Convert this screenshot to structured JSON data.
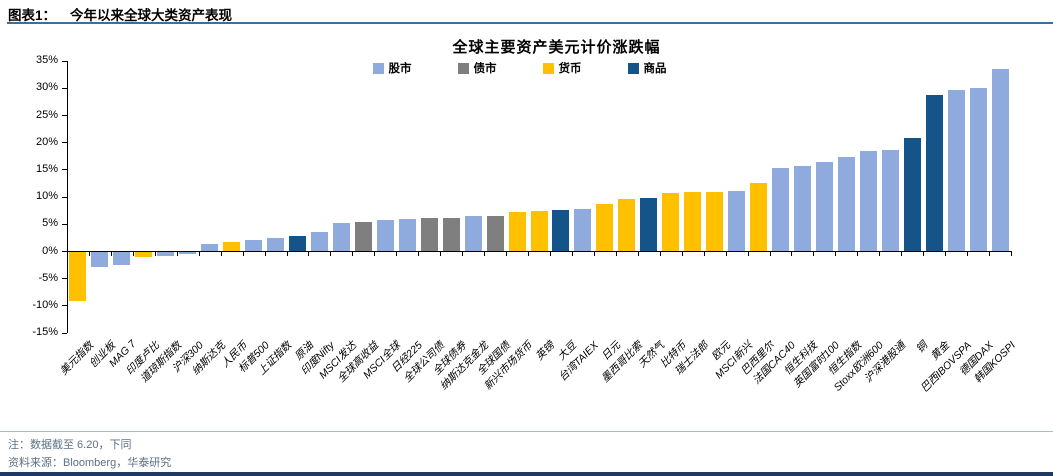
{
  "header": {
    "exhibit_label": "图表1：",
    "title": "今年以来全球大类资产表现"
  },
  "theme": {
    "rule_color": "#3E6E9E",
    "bottom_bar_color": "#1F3864",
    "note_color": "#5E7184",
    "footer_rule_color": "#A9BCCD"
  },
  "chart_data": {
    "type": "bar",
    "title": "全球主要资产美元计价涨跌幅",
    "ylabel": "",
    "xlabel": "",
    "ylim": [
      -15,
      35
    ],
    "yticks": [
      35,
      30,
      25,
      20,
      15,
      10,
      5,
      0,
      -5,
      -10,
      -15
    ],
    "ytick_format": "percent",
    "grid": false,
    "legend_position": "top",
    "legend": [
      {
        "label": "股市",
        "color": "#8FAADC"
      },
      {
        "label": "债市",
        "color": "#7F7F7F"
      },
      {
        "label": "货币",
        "color": "#FFC000"
      },
      {
        "label": "商品",
        "color": "#155489"
      }
    ],
    "bars": [
      {
        "label": "美元指数",
        "value": -9.0,
        "category": "货币"
      },
      {
        "label": "创业板",
        "value": -2.8,
        "category": "股市"
      },
      {
        "label": "MAG 7",
        "value": -2.3,
        "category": "股市"
      },
      {
        "label": "印度卢比",
        "value": -1.0,
        "category": "货币"
      },
      {
        "label": "道琼斯指数",
        "value": -0.8,
        "category": "股市"
      },
      {
        "label": "沪深300",
        "value": -0.3,
        "category": "股市"
      },
      {
        "label": "纳斯达克",
        "value": 1.2,
        "category": "股市"
      },
      {
        "label": "人民币",
        "value": 1.6,
        "category": "货币"
      },
      {
        "label": "标普500",
        "value": 2.0,
        "category": "股市"
      },
      {
        "label": "上证指数",
        "value": 2.4,
        "category": "股市"
      },
      {
        "label": "原油",
        "value": 2.8,
        "category": "商品"
      },
      {
        "label": "印度Nifty",
        "value": 3.5,
        "category": "股市"
      },
      {
        "label": "MSCI发达",
        "value": 5.2,
        "category": "股市"
      },
      {
        "label": "全球高收益",
        "value": 5.4,
        "category": "债市"
      },
      {
        "label": "MSCI全球",
        "value": 5.7,
        "category": "股市"
      },
      {
        "label": "日经225",
        "value": 5.8,
        "category": "股市"
      },
      {
        "label": "全球公司债",
        "value": 6.0,
        "category": "债市"
      },
      {
        "label": "全球债券",
        "value": 6.1,
        "category": "债市"
      },
      {
        "label": "纳斯达克金龙",
        "value": 6.4,
        "category": "股市"
      },
      {
        "label": "全球国债",
        "value": 6.5,
        "category": "债市"
      },
      {
        "label": "新兴市场货币",
        "value": 7.2,
        "category": "货币"
      },
      {
        "label": "英镑",
        "value": 7.3,
        "category": "货币"
      },
      {
        "label": "大豆",
        "value": 7.6,
        "category": "商品"
      },
      {
        "label": "台湾TAIEX",
        "value": 7.7,
        "category": "股市"
      },
      {
        "label": "日元",
        "value": 8.6,
        "category": "货币"
      },
      {
        "label": "墨西哥比索",
        "value": 9.5,
        "category": "货币"
      },
      {
        "label": "天然气",
        "value": 9.8,
        "category": "商品"
      },
      {
        "label": "比特币",
        "value": 10.7,
        "category": "货币"
      },
      {
        "label": "瑞士法郎",
        "value": 10.8,
        "category": "货币"
      },
      {
        "label": "欧元",
        "value": 10.9,
        "category": "货币"
      },
      {
        "label": "MSCI新兴",
        "value": 11.0,
        "category": "股市"
      },
      {
        "label": "巴西里尔",
        "value": 12.5,
        "category": "货币"
      },
      {
        "label": "法国CAC40",
        "value": 15.3,
        "category": "股市"
      },
      {
        "label": "恒生科技",
        "value": 15.6,
        "category": "股市"
      },
      {
        "label": "英国富时100",
        "value": 16.3,
        "category": "股市"
      },
      {
        "label": "恒生指数",
        "value": 17.2,
        "category": "股市"
      },
      {
        "label": "Stoxx欧洲600",
        "value": 18.4,
        "category": "股市"
      },
      {
        "label": "沪深港股通",
        "value": 18.6,
        "category": "股市"
      },
      {
        "label": "铜",
        "value": 20.8,
        "category": "商品"
      },
      {
        "label": "黄金",
        "value": 28.7,
        "category": "商品"
      },
      {
        "label": "巴西IBOVSPA",
        "value": 29.6,
        "category": "股市"
      },
      {
        "label": "德国DAX",
        "value": 30.0,
        "category": "股市"
      },
      {
        "label": "韩国KOSPI",
        "value": 33.4,
        "category": "股市"
      }
    ]
  },
  "footer": {
    "note": "注：数据截至 6.20，下同",
    "source": "资料来源：Bloomberg，华泰研究"
  }
}
